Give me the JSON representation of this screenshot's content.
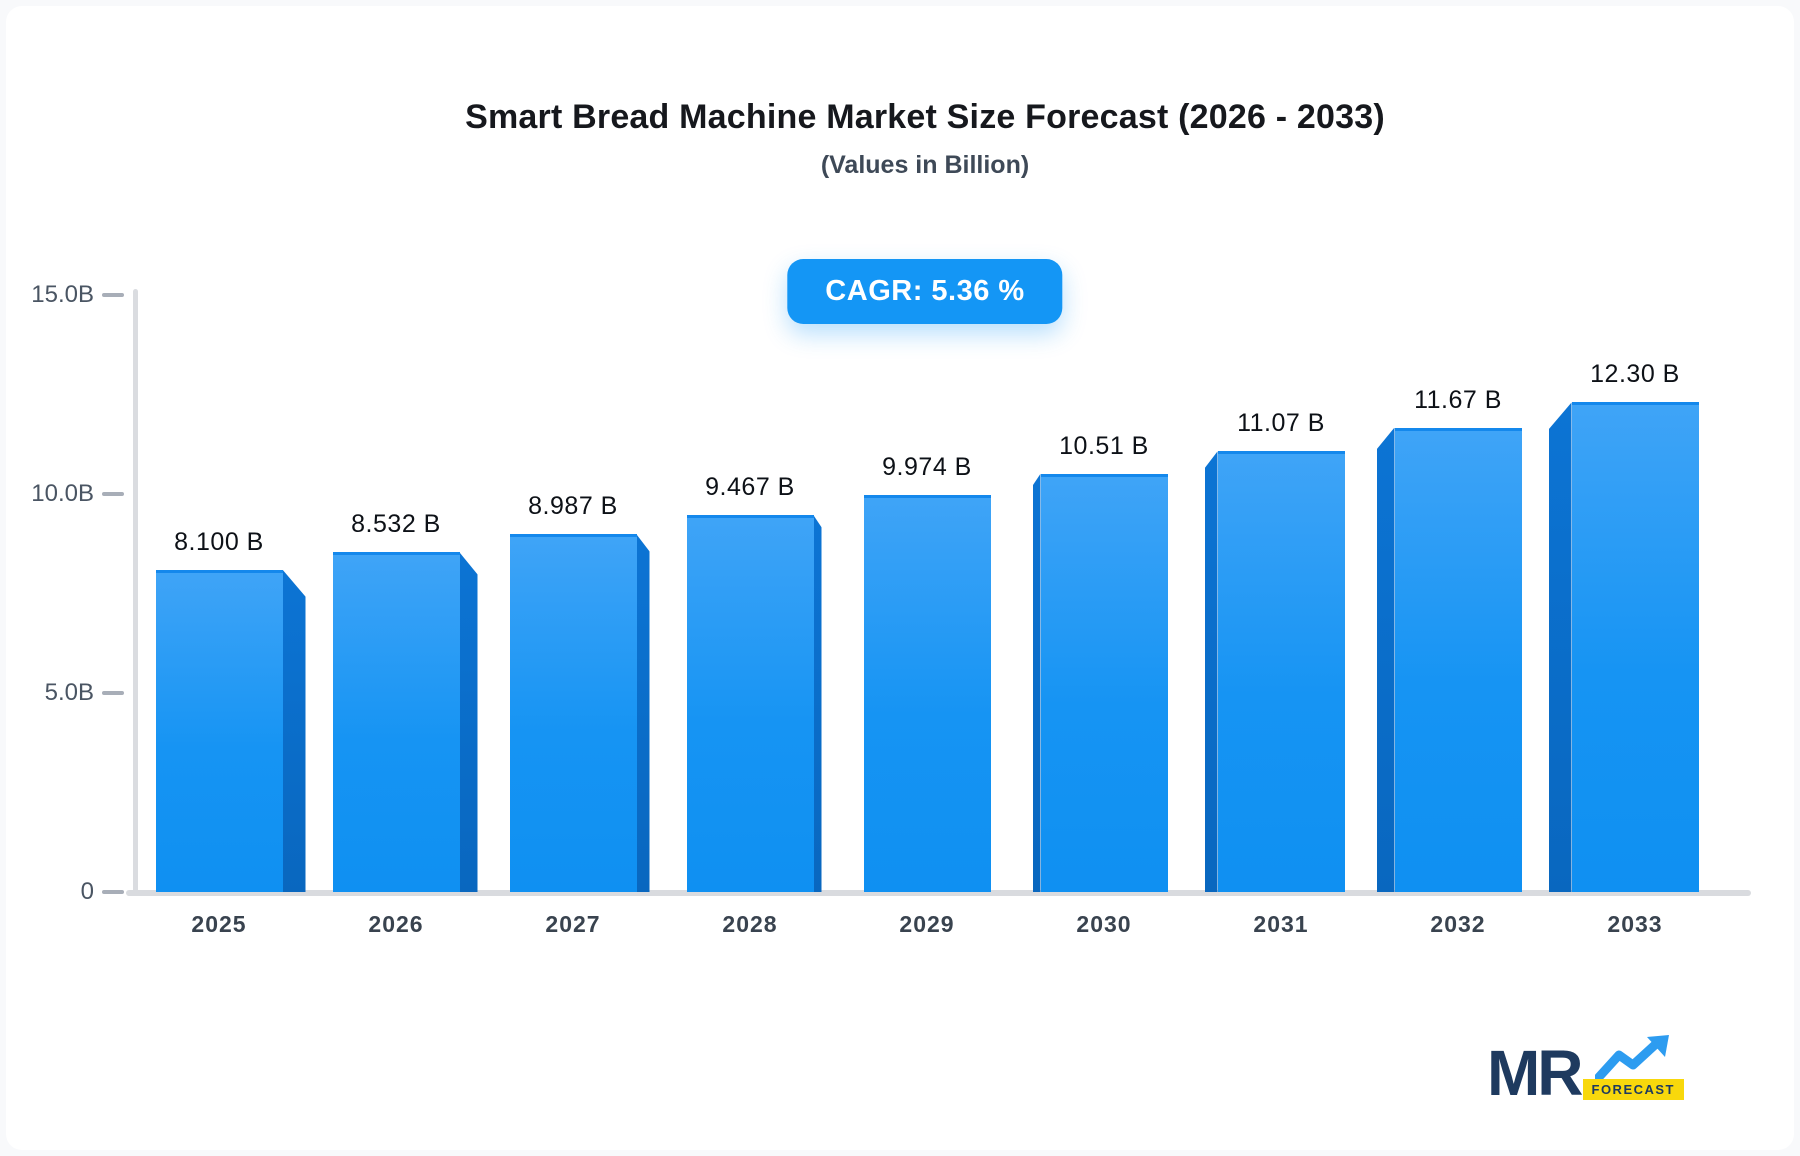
{
  "header": {
    "title": "Smart Bread Machine Market Size Forecast (2026 - 2033)",
    "subtitle": "(Values in Billion)",
    "cagr_badge": "CAGR: 5.36 %"
  },
  "chart_data": {
    "type": "bar",
    "title": "Smart Bread Machine Market Size Forecast (2026 - 2033)",
    "subtitle": "(Values in Billion)",
    "cagr_percent": 5.36,
    "categories": [
      "2025",
      "2026",
      "2027",
      "2028",
      "2029",
      "2030",
      "2031",
      "2032",
      "2033"
    ],
    "values": [
      8.1,
      8.532,
      8.987,
      9.467,
      9.974,
      10.51,
      11.07,
      11.67,
      12.3
    ],
    "value_labels": [
      "8.100 B",
      "8.532 B",
      "8.987 B",
      "9.467 B",
      "9.974 B",
      "10.51 B",
      "11.07 B",
      "11.67 B",
      "12.30 B"
    ],
    "xlabel": "",
    "ylabel": "",
    "ylim": [
      0,
      15
    ],
    "yticks": [
      {
        "label": "15.0B",
        "value": 15
      },
      {
        "label": "10.0B",
        "value": 10
      },
      {
        "label": "5.0B",
        "value": 5
      },
      {
        "label": "0",
        "value": 0
      }
    ],
    "grid": false,
    "legend_position": "none",
    "bar_color": "#1E96F3",
    "bar_side_color": "#0A6BC8",
    "badge_color": "#1496F5"
  },
  "logo": {
    "mr_text": "MR",
    "forecast_text": "FORECAST",
    "navy": "#1E3A5F",
    "yellow": "#F8D80C",
    "arrow_blue": "#2D9CF0"
  }
}
